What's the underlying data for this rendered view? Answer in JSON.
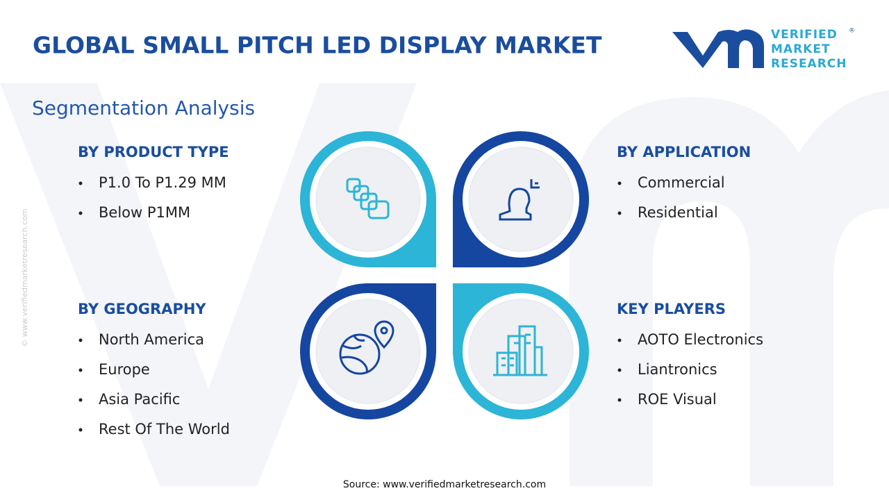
{
  "header": {
    "title": "GLOBAL SMALL PITCH LED DISPLAY MARKET",
    "subtitle": "Segmentation Analysis"
  },
  "logo": {
    "lines": [
      "VERIFIED",
      "MARKET",
      "RESEARCH"
    ],
    "mark": "®"
  },
  "watermark": "© www.verifiedmarketresearch.com",
  "segments": [
    {
      "heading": "BY PRODUCT TYPE",
      "items": [
        "P1.0 To P1.29 MM",
        "Below P1MM"
      ]
    },
    {
      "heading": "BY APPLICATION",
      "items": [
        "Commercial",
        "Residential"
      ]
    },
    {
      "heading": "BY GEOGRAPHY",
      "items": [
        "North America",
        "Europe",
        "Asia Pacific",
        "Rest Of The World"
      ]
    },
    {
      "heading": "KEY PLAYERS",
      "items": [
        "AOTO Electronics",
        "Liantronics",
        "ROE Visual"
      ]
    }
  ],
  "source": "Source: www.verifiedmarketresearch.com"
}
